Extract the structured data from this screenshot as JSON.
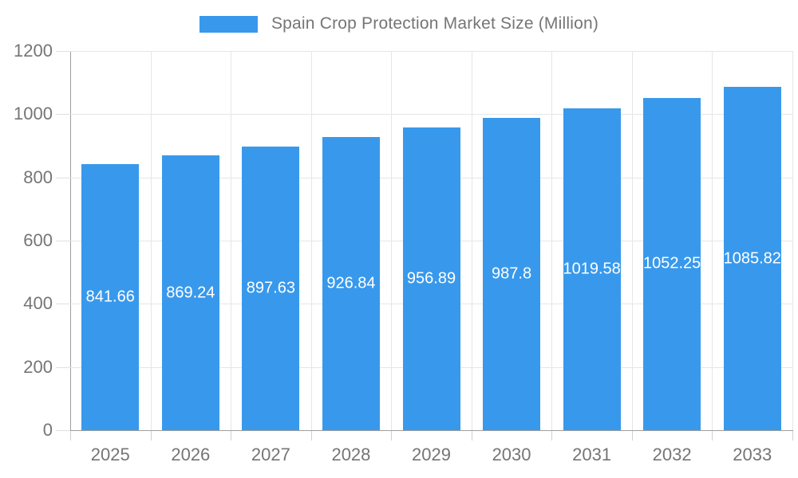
{
  "chart_data": {
    "type": "bar",
    "title": "Spain Crop Protection Market Size (Million)",
    "categories": [
      "2025",
      "2026",
      "2027",
      "2028",
      "2029",
      "2030",
      "2031",
      "2032",
      "2033"
    ],
    "values": [
      841.66,
      869.24,
      897.63,
      926.84,
      956.89,
      987.8,
      1019.58,
      1052.25,
      1085.82
    ],
    "value_labels": [
      "841.66",
      "869.24",
      "897.63",
      "926.84",
      "956.89",
      "987.8",
      "1019.58",
      "1052.25",
      "1085.82"
    ],
    "xlabel": "",
    "ylabel": "",
    "ylim": [
      0,
      1200
    ],
    "yticks": [
      0,
      200,
      400,
      600,
      800,
      1000,
      1200
    ],
    "grid": true,
    "legend_position": "top-center",
    "colors": {
      "bar": "#3899ec",
      "gridline": "#e6e6e6",
      "axis": "#9e9e9e",
      "tick": "#d0d0d0",
      "axis_text": "#757575",
      "value_label_text": "#ffffff"
    }
  }
}
